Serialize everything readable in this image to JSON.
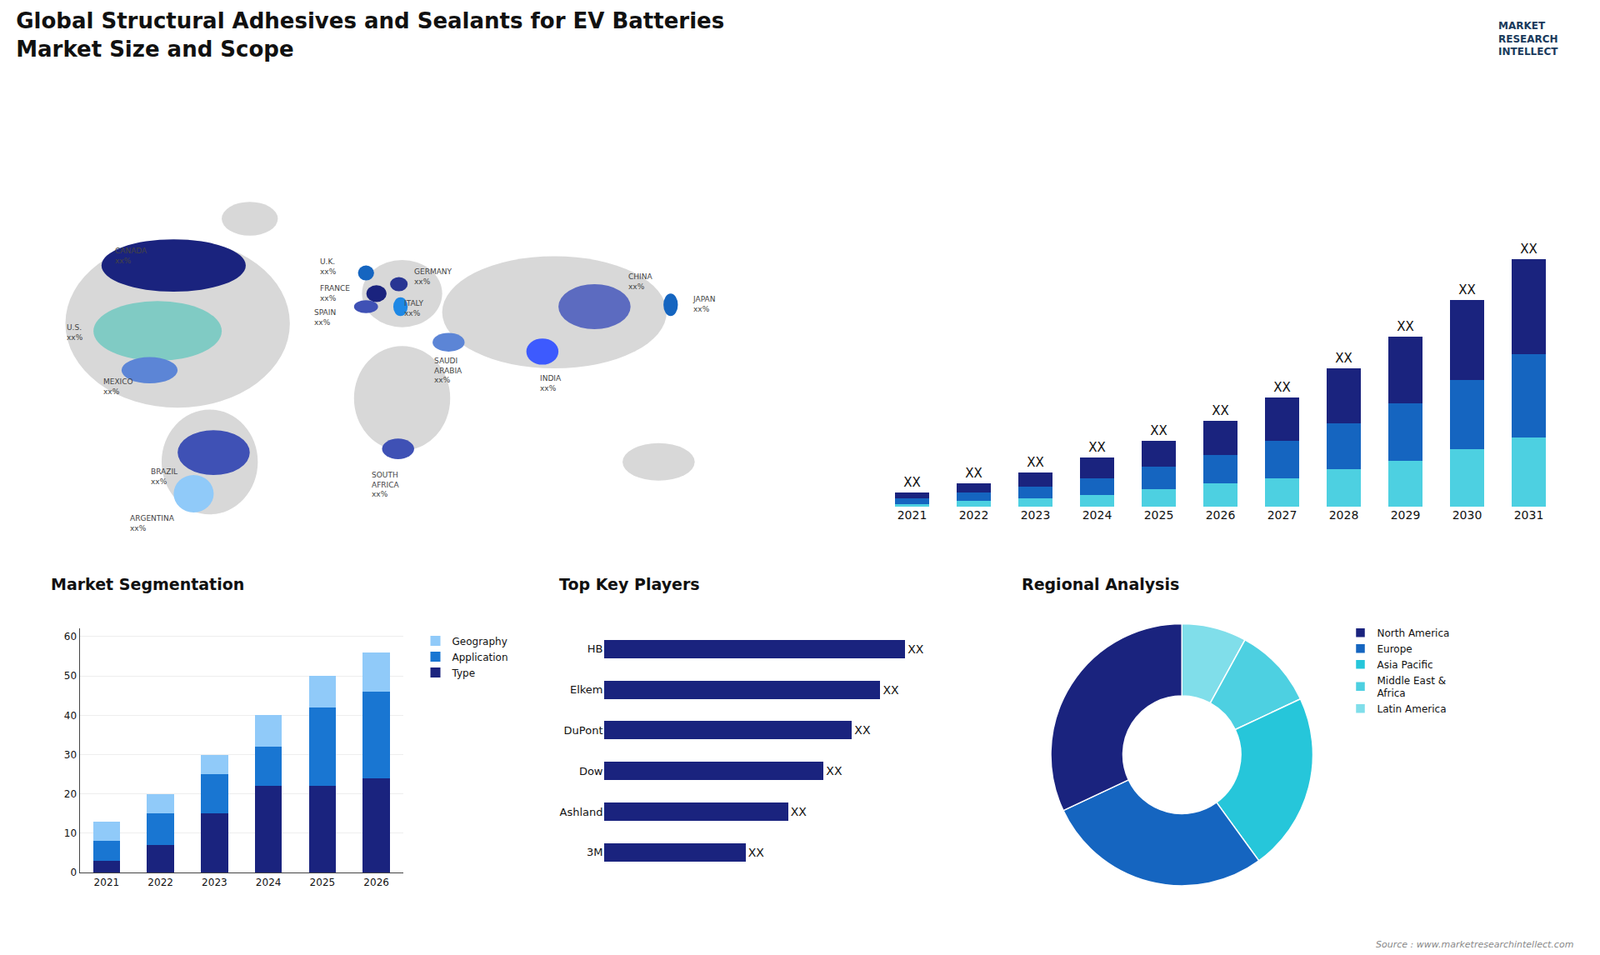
{
  "chart_data": [
    {
      "type": "bar",
      "stacked": true,
      "title": "Global Structural Adhesives and Sealants for EV Batteries",
      "subtitle": "Market Size and Scope",
      "categories": [
        "2021",
        "2022",
        "2023",
        "2024",
        "2025",
        "2026",
        "2027",
        "2028",
        "2029",
        "2030",
        "2031"
      ],
      "series": [
        {
          "color": "#4dd0e1",
          "values": [
            1,
            2,
            3,
            4,
            6,
            8,
            10,
            13,
            16,
            20,
            24
          ]
        },
        {
          "color": "#1565c0",
          "values": [
            2,
            3,
            4,
            6,
            8,
            10,
            13,
            16,
            20,
            24,
            29
          ]
        },
        {
          "color": "#1a237e",
          "values": [
            2,
            3,
            5,
            7,
            9,
            12,
            15,
            19,
            23,
            28,
            33
          ],
          "value_labels": [
            "XX",
            "XX",
            "XX",
            "XX",
            "XX",
            "XX",
            "XX",
            "XX",
            "XX",
            "XX",
            "XX"
          ]
        }
      ],
      "ylim": [
        0,
        107.5
      ],
      "tick_labels": "x",
      "grid": false,
      "annotations": [
        "MARKET\nRESEARCH\nINTELLECT",
        "Source : www.marketresearchintellect.com"
      ]
    },
    {
      "type": "map",
      "annotations": [
        "CANADA\nxx%",
        "U.S.\nxx%",
        "MEXICO\nxx%",
        "BRAZIL\nxx%",
        "ARGENTINA\nxx%",
        "U.K.\nxx%",
        "FRANCE\nxx%",
        "SPAIN\nxx%",
        "GERMANY\nxx%",
        "ITALY\nxx%",
        "SAUDI\nARABIA\nxx%",
        "SOUTH\nAFRICA\nxx%",
        "CHINA\nxx%",
        "INDIA\nxx%",
        "JAPAN\nxx%"
      ],
      "colors": [
        "#1a237e",
        "#80cbc4",
        "#5c85d6",
        "#3f51b5",
        "#90caf9",
        "#1565c0",
        "#1a237e",
        "#3f51b5",
        "#283593",
        "#1e88e5",
        "#5c85d6",
        "#3f51b5",
        "#5c6bc0",
        "#3d5afe",
        "#1565c0"
      ]
    },
    {
      "type": "bar",
      "stacked": true,
      "title": "Market Segmentation",
      "categories": [
        "2021",
        "2022",
        "2023",
        "2024",
        "2025",
        "2026"
      ],
      "series": [
        {
          "name": "Type",
          "color": "#1a237e",
          "values": [
            3,
            7,
            15,
            22,
            22,
            24
          ]
        },
        {
          "name": "Application",
          "color": "#1976d2",
          "values": [
            5,
            8,
            10,
            10,
            20,
            22
          ]
        },
        {
          "name": "Geography",
          "color": "#90caf9",
          "values": [
            5,
            5,
            5,
            8,
            8,
            10
          ]
        }
      ],
      "ylim": [
        0,
        62
      ],
      "yticks": [
        0,
        10,
        20,
        30,
        40,
        50,
        60
      ],
      "grid": true,
      "legend": "upper right"
    },
    {
      "type": "bar",
      "orientation": "horizontal",
      "title": "Top Key Players",
      "categories": [
        "HB",
        "Elkem",
        "DuPont",
        "Dow",
        "Ashland",
        "3M"
      ],
      "values": [
        85,
        78,
        70,
        62,
        52,
        40
      ],
      "value_labels": [
        "XX",
        "XX",
        "XX",
        "XX",
        "XX",
        "XX"
      ],
      "color": "#1a237e",
      "xlim": [
        0,
        100
      ],
      "tick_labels": "y",
      "grid": false
    },
    {
      "type": "pie",
      "title": "Regional Analysis",
      "categories": [
        "Latin America",
        "Middle East &\nAfrica",
        "Asia Pacific",
        "Europe",
        "North America"
      ],
      "values": [
        8,
        10,
        22,
        28,
        32
      ],
      "colors": [
        "#80deea",
        "#4dd0e1",
        "#26c6da",
        "#1565c0",
        "#1a237e"
      ],
      "legend": "upper right"
    }
  ]
}
